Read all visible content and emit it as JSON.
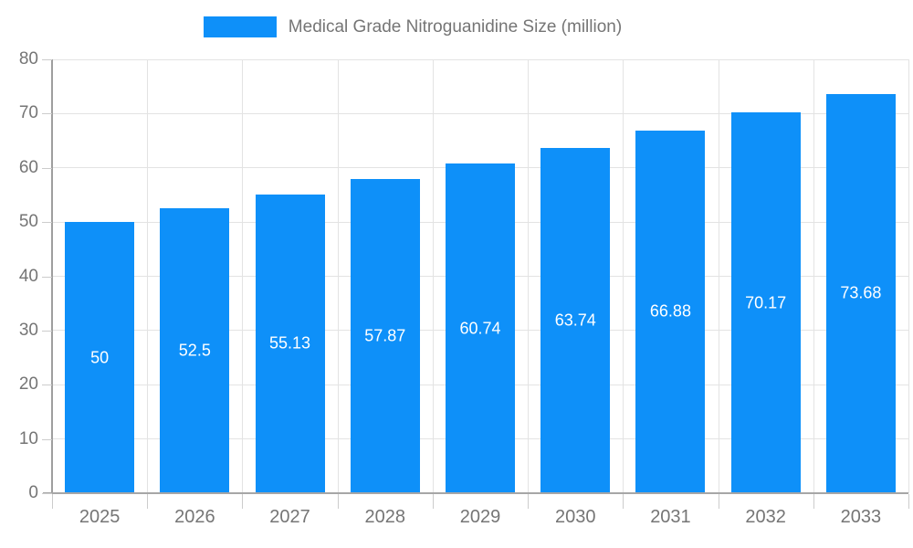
{
  "chart_data": {
    "type": "bar",
    "title": "",
    "legend": "Medical Grade Nitroguanidine Size (million)",
    "legend_position": "top",
    "categories": [
      "2025",
      "2026",
      "2027",
      "2028",
      "2029",
      "2030",
      "2031",
      "2032",
      "2033"
    ],
    "values": [
      50,
      52.5,
      55.13,
      57.87,
      60.74,
      63.74,
      66.88,
      70.17,
      73.68
    ],
    "value_labels": [
      "50",
      "52.5",
      "55.13",
      "57.87",
      "60.74",
      "63.74",
      "66.88",
      "70.17",
      "73.68"
    ],
    "xlabel": "",
    "ylabel": "",
    "ylim": [
      0,
      80
    ],
    "yticks": [
      0,
      10,
      20,
      30,
      40,
      50,
      60,
      70,
      80
    ],
    "grid": true
  },
  "colors": {
    "bar": "#0e90f9",
    "text": "#757575",
    "value_label": "#ffffff",
    "gridline": "#e3e3e3",
    "axis": "#9e9e9e",
    "tick": "#cccccc",
    "background": "#ffffff"
  }
}
